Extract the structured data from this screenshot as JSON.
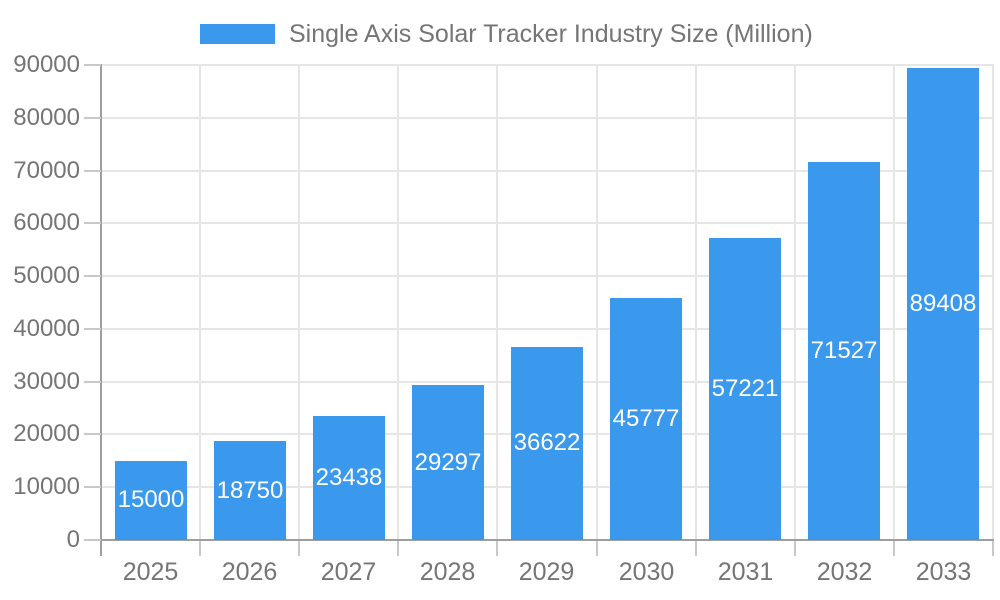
{
  "legend": {
    "label": "Single Axis Solar Tracker Industry Size (Million)"
  },
  "colors": {
    "bar": "#3a99ec",
    "grid": "#e6e6e6",
    "axis": "#9e9e9e",
    "tick": "#c8c8c8",
    "text": "#757575",
    "value_label": "#ffffff",
    "background": "#ffffff"
  },
  "chart_data": {
    "type": "bar",
    "title": "Single Axis Solar Tracker Industry Size (Million)",
    "series_name": "Single Axis Solar Tracker Industry Size (Million)",
    "categories": [
      "2025",
      "2026",
      "2027",
      "2028",
      "2029",
      "2030",
      "2031",
      "2032",
      "2033"
    ],
    "values": [
      15000,
      18750,
      23438,
      29297,
      36622,
      45777,
      57221,
      71527,
      89408
    ],
    "xlabel": "",
    "ylabel": "",
    "ylim": [
      0,
      90000
    ],
    "y_ticks": [
      0,
      10000,
      20000,
      30000,
      40000,
      50000,
      60000,
      70000,
      80000,
      90000
    ],
    "grid": true,
    "legend_position": "top",
    "value_label_style": "white, centered inside bar"
  }
}
